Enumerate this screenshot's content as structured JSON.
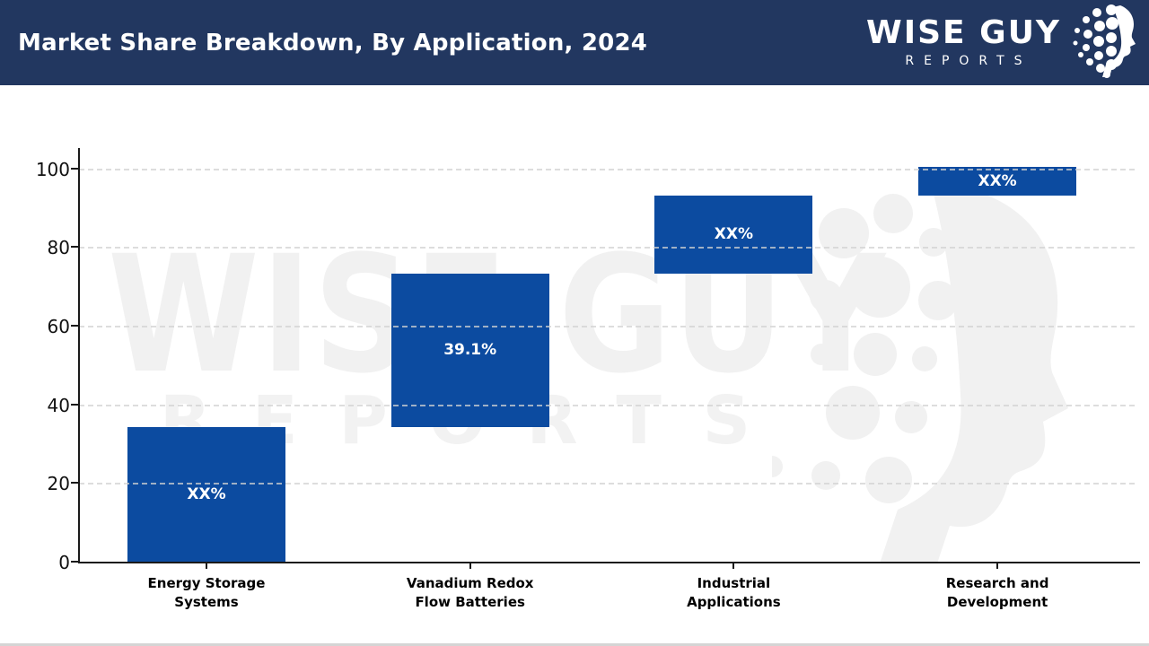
{
  "header": {
    "title": "Market Share Breakdown, By Application, 2024",
    "brand": {
      "line1": "WISE GUY",
      "line2": "REPORTS"
    }
  },
  "watermark": {
    "line1": "WISE GUY",
    "line2": "REPORTS"
  },
  "chart_data": {
    "type": "bar",
    "subtype": "waterfall-stacked-segments",
    "title": "Market Share Breakdown, By Application, 2024",
    "categories": [
      "Energy Storage Systems",
      "Vanadium Redox Flow Batteries",
      "Industrial Applications",
      "Research and Development"
    ],
    "category_lines": [
      [
        "Energy Storage",
        "Systems"
      ],
      [
        "Vanadium Redox",
        "Flow Batteries"
      ],
      [
        "Industrial",
        "Applications"
      ],
      [
        "Research and",
        "Development"
      ]
    ],
    "segments": [
      {
        "category": "Energy Storage Systems",
        "start": 0,
        "end": 34.2,
        "estimated_value": 34.2,
        "value_label": "XX%"
      },
      {
        "category": "Vanadium Redox Flow Batteries",
        "start": 34.2,
        "end": 73.3,
        "estimated_value": 39.1,
        "value_label": "39.1%"
      },
      {
        "category": "Industrial Applications",
        "start": 73.3,
        "end": 93.0,
        "estimated_value": 19.7,
        "value_label": "XX%"
      },
      {
        "category": "Research and Development",
        "start": 93.0,
        "end": 100.3,
        "estimated_value": 7.3,
        "value_label": "XX%"
      }
    ],
    "xlabel": "",
    "ylabel": "",
    "ylim": [
      0,
      100
    ],
    "yticks": [
      0,
      20,
      40,
      60,
      80,
      100
    ],
    "grid": "horizontal-dashed",
    "legend": "none"
  },
  "colors": {
    "header_bg": "#223760",
    "bar": "#0c4ba0",
    "value_label": "#ffffff",
    "axis": "#1a1a1a",
    "grid": "#d6d6d6",
    "watermark": "#f1f1f1",
    "footer_line": "#d5d5d5"
  }
}
